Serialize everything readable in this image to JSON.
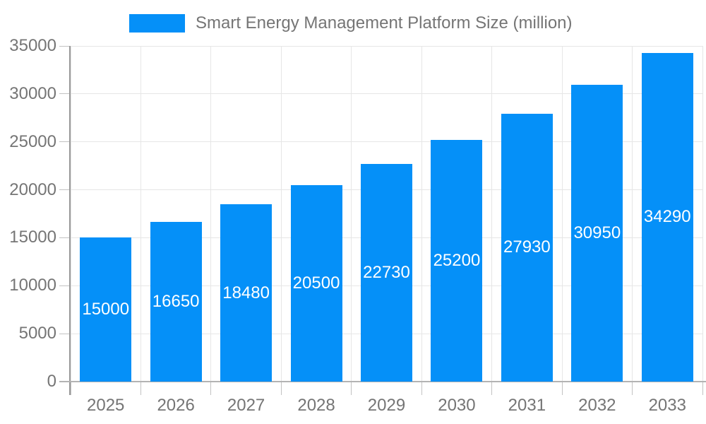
{
  "chart_data": {
    "type": "bar",
    "legend": {
      "label": "Smart Energy Management Platform Size (million)",
      "position": "top",
      "swatch_color": "#0590F8"
    },
    "categories": [
      "2025",
      "2026",
      "2027",
      "2028",
      "2029",
      "2030",
      "2031",
      "2032",
      "2033"
    ],
    "series": [
      {
        "name": "Smart Energy Management Platform Size (million)",
        "values": [
          15000,
          16650,
          18480,
          20500,
          22730,
          25200,
          27930,
          30950,
          34290
        ]
      }
    ],
    "value_labels_shown_inside_bars": true,
    "xlabel": "",
    "ylabel": "",
    "ylim": [
      0,
      35000
    ],
    "y_ticks": [
      "0",
      "5000",
      "10000",
      "15000",
      "20000",
      "25000",
      "30000",
      "35000"
    ],
    "grid": true,
    "legend_position": "top",
    "colors": {
      "bar": "#0590F8",
      "grid": "#E6E6E6",
      "y_axis": "#999999",
      "x_axis": "#B3B3B3",
      "tick": "#C2C2C2",
      "axis_text": "#757575",
      "value_text": "#FFFFFF",
      "background": "#FFFFFF"
    }
  }
}
